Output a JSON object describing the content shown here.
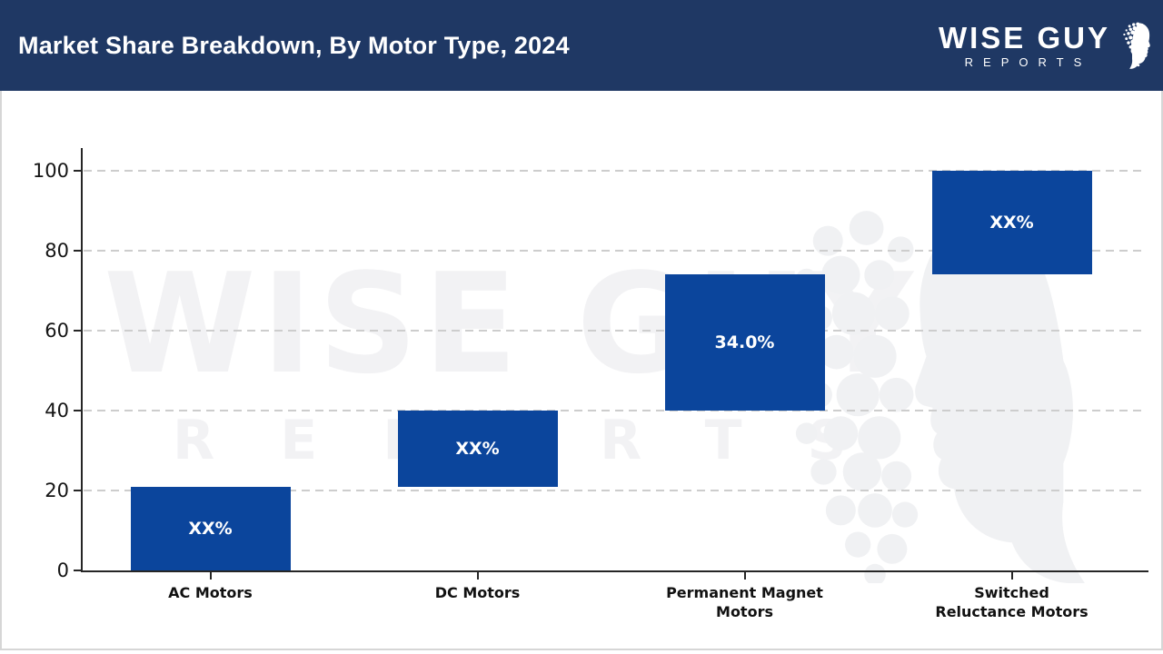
{
  "header": {
    "title": "Market Share Breakdown, By Motor Type, 2024",
    "logo": {
      "name": "WISE GUY",
      "tagline": "REPORTS"
    }
  },
  "watermark": {
    "line1": "WISE GUY",
    "line2": "REPORTS"
  },
  "colors": {
    "header_background": "#1f3864",
    "bar": "#0b459c",
    "bar_label_text": "#ffffff",
    "gridline": "#cdcdcd",
    "axis": "#262626",
    "watermark": "#f2f2f4"
  },
  "chart_data": {
    "type": "bar",
    "subtype": "waterfall",
    "title": "Market Share Breakdown, By Motor Type, 2024",
    "categories": [
      "AC Motors",
      "DC Motors",
      "Permanent Magnet\nMotors",
      "Switched\nReluctance Motors"
    ],
    "series": [
      {
        "name": "Market share (%)",
        "segments": [
          {
            "category": "AC Motors",
            "start": 0,
            "end": 21,
            "value": 21,
            "label": "XX%"
          },
          {
            "category": "DC Motors",
            "start": 21,
            "end": 40,
            "value": 19,
            "label": "XX%"
          },
          {
            "category": "Permanent Magnet Motors",
            "start": 40,
            "end": 74,
            "value": 34,
            "label": "34.0%"
          },
          {
            "category": "Switched Reluctance Motors",
            "start": 74,
            "end": 100,
            "value": 26,
            "label": "XX%"
          }
        ]
      }
    ],
    "ylim": [
      0,
      100
    ],
    "yticks": [
      0,
      20,
      40,
      60,
      80,
      100
    ],
    "xlabel": "",
    "ylabel": "",
    "grid": "horizontal-dashed",
    "legend": "none",
    "bar_color": "#0b459c"
  }
}
